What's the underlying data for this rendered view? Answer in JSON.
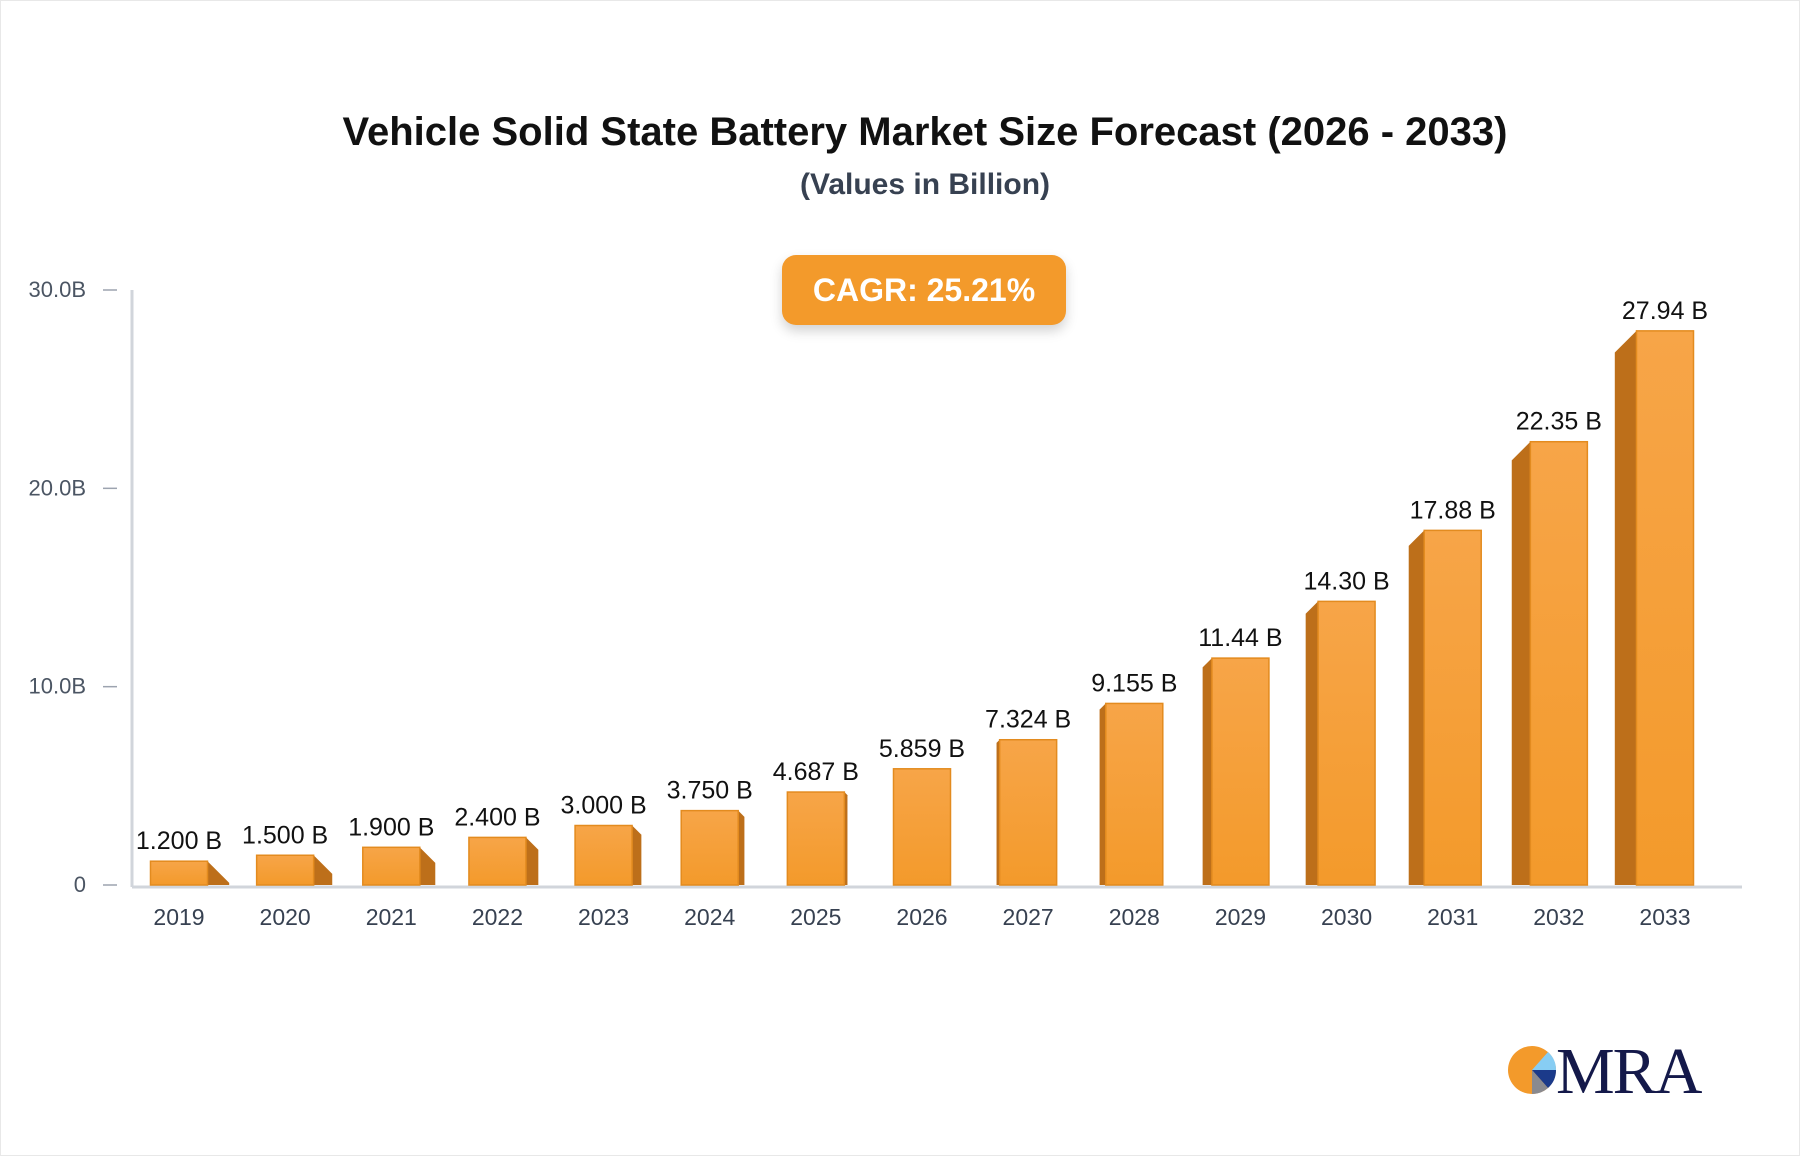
{
  "chart_data": {
    "type": "bar",
    "title": "Vehicle Solid State Battery Market Size Forecast (2026 - 2033)",
    "subtitle": "(Values in Billion)",
    "annotation": "CAGR: 25.21%",
    "categories": [
      "2019",
      "2020",
      "2021",
      "2022",
      "2023",
      "2024",
      "2025",
      "2026",
      "2027",
      "2028",
      "2029",
      "2030",
      "2031",
      "2032",
      "2033"
    ],
    "values": [
      1.2,
      1.5,
      1.9,
      2.4,
      3.0,
      3.75,
      4.687,
      5.859,
      7.324,
      9.155,
      11.44,
      14.3,
      17.88,
      22.35,
      27.94
    ],
    "data_labels": [
      "1.200 B",
      "1.500 B",
      "1.900 B",
      "2.400 B",
      "3.000 B",
      "3.750 B",
      "4.687 B",
      "5.859 B",
      "7.324 B",
      "9.155 B",
      "11.44 B",
      "14.30 B",
      "17.88 B",
      "22.35 B",
      "27.94 B"
    ],
    "yticks": [
      0,
      10,
      20,
      30
    ],
    "ytick_labels": [
      "0",
      "10.0B",
      "20.0B",
      "30.0B"
    ],
    "ylim": [
      0,
      30
    ],
    "xlabel": "",
    "ylabel": "",
    "grid": false,
    "style": "3d-bar",
    "colors": {
      "bar_front": "#f7a548",
      "bar_bottom": "#f39a2b",
      "bar_side": "#bd6f1a",
      "bar_edge": "#e38b1f",
      "axis": "#d1d5db",
      "badge": "#f39a2b"
    }
  },
  "logo": {
    "text": "MRA",
    "colors": {
      "orange": "#f39a2b",
      "light_blue": "#87cdf3",
      "navy": "#1b3a8a",
      "gray": "#8a8a8f",
      "text": "#14194a"
    }
  }
}
